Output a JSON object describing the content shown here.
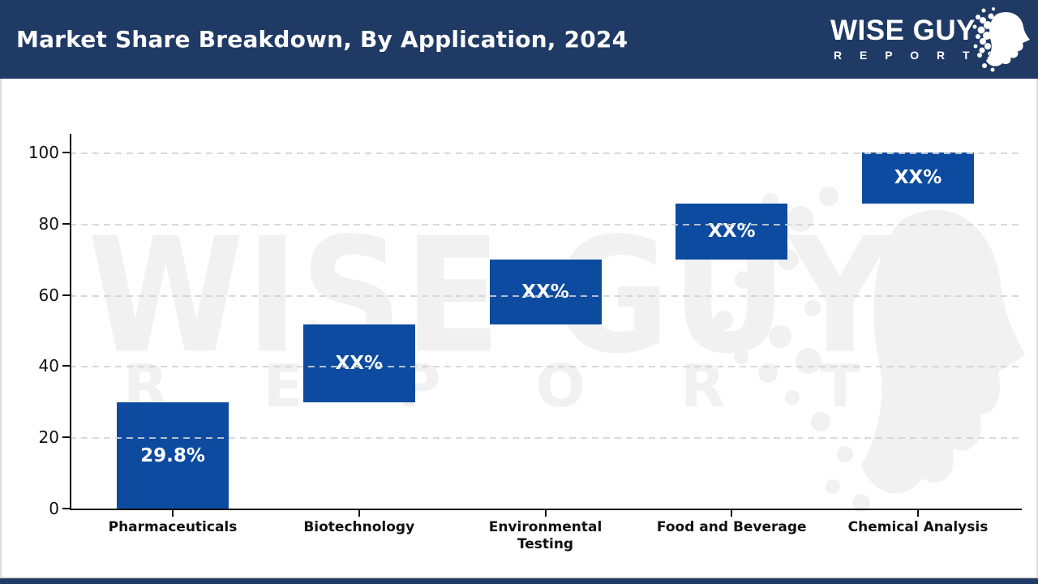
{
  "header": {
    "title": "Market Share Breakdown, By Application, 2024",
    "logo": {
      "line1": "WISE GUY",
      "line2": "R E P O R T S"
    }
  },
  "watermark": {
    "line1": "WISE GUY",
    "line2": "R E P O R T S"
  },
  "colors": {
    "header_bg": "#203A66",
    "footer_bg": "#203A66",
    "bar": "#0C4BA0",
    "bar_label": "#FFFFFF",
    "grid": "#D4D4D4",
    "axis": "#111111",
    "watermark": "#F1F1F1",
    "page_bg": "#FFFFFF"
  },
  "chart_data": {
    "type": "bar",
    "subtype": "waterfall",
    "title": "Market Share Breakdown, By Application, 2024",
    "categories": [
      "Pharmaceuticals",
      "Biotechnology",
      "Environmental Testing",
      "Food and Beverage",
      "Chemical Analysis"
    ],
    "series": [
      {
        "name": "Market Share",
        "segments": [
          {
            "category": "Pharmaceuticals",
            "start": 0,
            "end": 29.8,
            "label": "29.8%"
          },
          {
            "category": "Biotechnology",
            "start": 29.8,
            "end": 51.6,
            "label": "XX%"
          },
          {
            "category": "Environmental Testing",
            "start": 51.6,
            "end": 69.9,
            "label": "XX%"
          },
          {
            "category": "Food and Beverage",
            "start": 69.9,
            "end": 85.7,
            "label": "XX%"
          },
          {
            "category": "Chemical Analysis",
            "start": 85.7,
            "end": 100,
            "label": "XX%"
          }
        ]
      }
    ],
    "xlabel": "",
    "ylabel": "",
    "ylim": [
      0,
      105
    ],
    "yticks": [
      0,
      20,
      40,
      60,
      80,
      100
    ],
    "grid": "horizontal dashed",
    "legend": "none"
  }
}
